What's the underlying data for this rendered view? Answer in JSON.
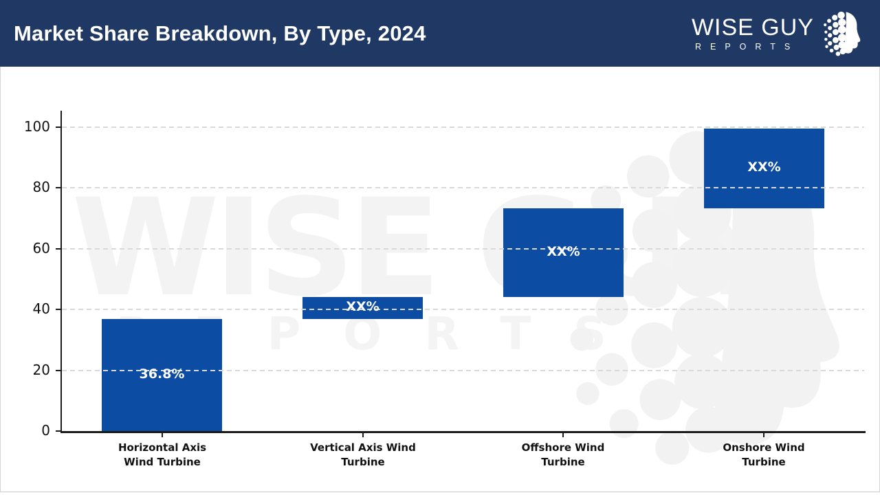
{
  "header": {
    "title": "Market Share Breakdown, By Type, 2024",
    "logo": {
      "name": "WISE GUY",
      "tagline": "REPORTS"
    }
  },
  "watermark": {
    "line1": "WISE GUY",
    "line2": "REPORTS"
  },
  "chart_data": {
    "type": "bar",
    "variant": "waterfall",
    "title": "Market Share Breakdown, By Type, 2024",
    "categories": [
      "Horizontal Axis Wind Turbine",
      "Vertical Axis Wind Turbine",
      "Offshore Wind Turbine",
      "Onshore Wind Turbine"
    ],
    "category_label_lines": [
      [
        "Horizontal Axis",
        "Wind Turbine"
      ],
      [
        "Vertical Axis Wind",
        "Turbine"
      ],
      [
        "Offshore Wind",
        "Turbine"
      ],
      [
        "Onshore Wind",
        "Turbine"
      ]
    ],
    "segments": [
      {
        "category": "Horizontal Axis Wind Turbine",
        "start": 0,
        "end": 36.8,
        "label": "36.8%"
      },
      {
        "category": "Vertical Axis Wind Turbine",
        "start": 36.8,
        "end": 44.1,
        "label": "XX%"
      },
      {
        "category": "Offshore Wind Turbine",
        "start": 44.1,
        "end": 73.3,
        "label": "XX%"
      },
      {
        "category": "Onshore Wind Turbine",
        "start": 73.3,
        "end": 99.5,
        "label": "XX%"
      }
    ],
    "xlabel": "",
    "ylabel": "",
    "yticks": [
      0,
      20,
      40,
      60,
      80,
      100
    ],
    "ylim": [
      0,
      105
    ],
    "grid": "horizontal-dashed",
    "legend": "none"
  },
  "colors": {
    "header_bg": "#1f3864",
    "bar": "#0c4ca3",
    "bar_label": "#ffffff",
    "grid": "#d9d9d9",
    "axis": "#1a1a1a",
    "watermark": "#f2f2f2"
  }
}
